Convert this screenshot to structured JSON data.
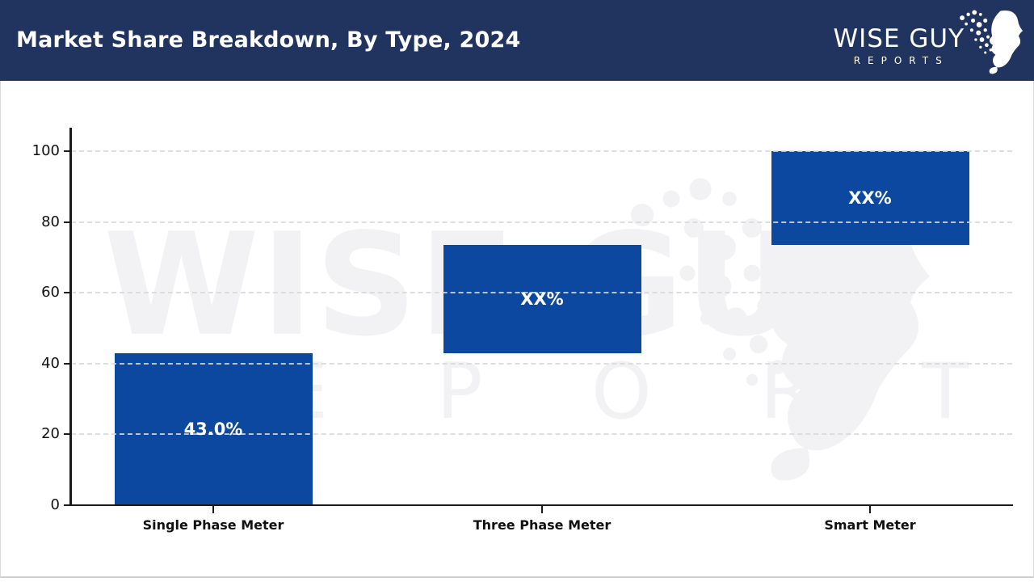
{
  "header": {
    "title": "Market Share Breakdown, By Type, 2024",
    "bg_color": "#21345f",
    "logo": {
      "line1": "WISE GUY",
      "line2": "REPORTS"
    }
  },
  "watermark": {
    "line1": "WISE GUY",
    "line2": "R E P O R T S"
  },
  "chart_data": {
    "type": "bar",
    "subtype": "waterfall-floating-segments",
    "title": "Market Share Breakdown, By Type, 2024",
    "xlabel": "",
    "ylabel": "",
    "categories": [
      "Single Phase Meter",
      "Three Phase Meter",
      "Smart Meter"
    ],
    "segments": [
      {
        "category": "Single Phase Meter",
        "start": 0,
        "end": 43,
        "label": "43.0%"
      },
      {
        "category": "Three Phase Meter",
        "start": 43,
        "end": 73.5,
        "label": "XX%"
      },
      {
        "category": "Smart Meter",
        "start": 73.5,
        "end": 100,
        "label": "XX%"
      }
    ],
    "y_ticks": [
      0,
      20,
      40,
      60,
      80,
      100
    ],
    "ylim": [
      0,
      106
    ],
    "grid": "horizontal-dashed-above-bars",
    "legend": "none",
    "bar_color": "#0c48a0",
    "bar_label_color": "#ffffff",
    "axis_color": "#1a1a1a",
    "gridline_color": "#d9d9d9",
    "watermark_color": "#f2f2f4"
  }
}
